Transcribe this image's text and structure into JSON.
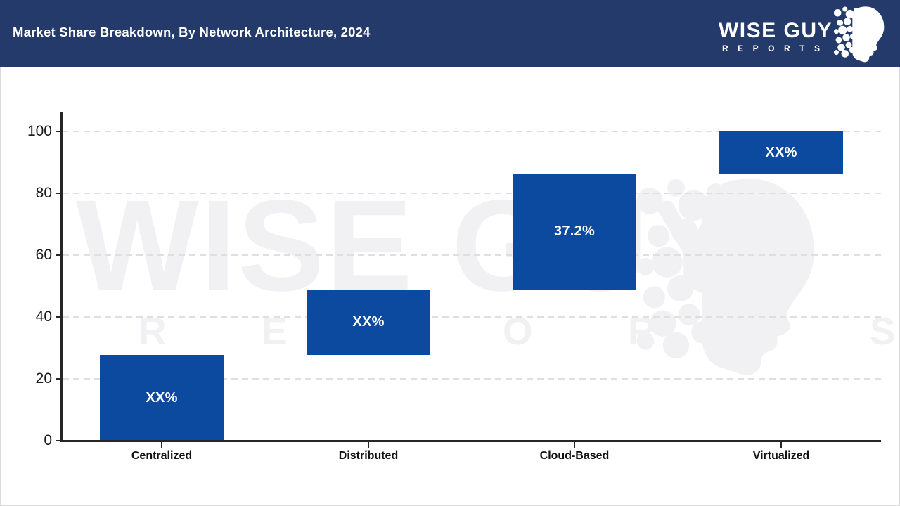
{
  "header": {
    "title": "Market Share Breakdown, By Network Architecture, 2024",
    "logo": {
      "line1": "WISE GUY",
      "line2": "REPORTS",
      "icon": "face-profile-dots-icon"
    }
  },
  "watermark": {
    "line1": "WISE GUY",
    "line2": "R E P O R T S",
    "icon": "face-profile-dots-icon"
  },
  "colors": {
    "header_bg": "#243a6b",
    "bar": "#0b4a9f",
    "watermark": "#f1f1f4",
    "grid": "#dfdfdf",
    "axis": "#262626"
  },
  "chart_data": {
    "type": "bar",
    "subtype": "waterfall",
    "title": "Market Share Breakdown, By Network Architecture, 2024",
    "categories": [
      "Centralized",
      "Distributed",
      "Cloud-Based",
      "Virtualized"
    ],
    "values": [
      27.7,
      21.2,
      37.2,
      13.9
    ],
    "bars": [
      {
        "category": "Centralized",
        "label": "XX%",
        "start": 0,
        "end": 27.7
      },
      {
        "category": "Distributed",
        "label": "XX%",
        "start": 27.7,
        "end": 48.9
      },
      {
        "category": "Cloud-Based",
        "label": "37.2%",
        "start": 48.9,
        "end": 86.1
      },
      {
        "category": "Virtualized",
        "label": "XX%",
        "start": 86.1,
        "end": 100
      }
    ],
    "xlabel": "",
    "ylabel": "",
    "yticks": [
      0,
      20,
      40,
      60,
      80,
      100
    ],
    "ylim": [
      0,
      106
    ],
    "grid": "dashed-horizontal",
    "legend": "none"
  }
}
